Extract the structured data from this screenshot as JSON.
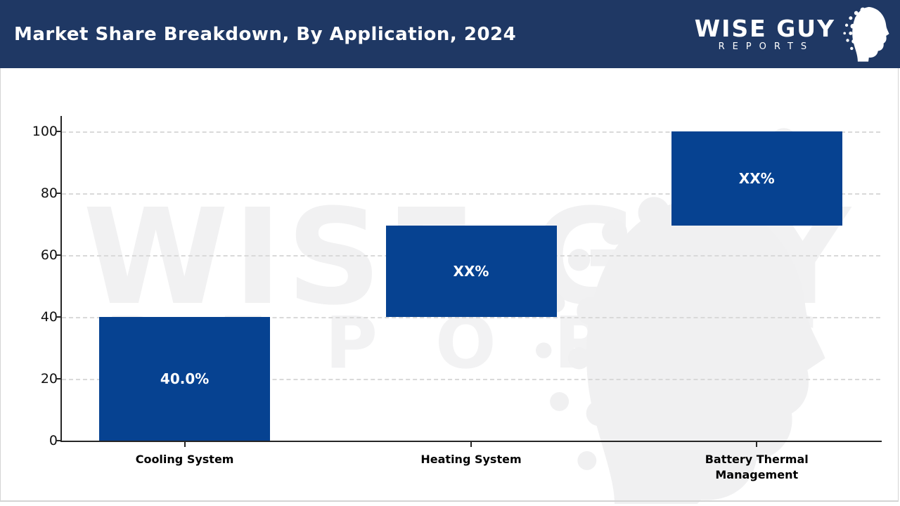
{
  "header": {
    "title": "Market Share Breakdown, By Application, 2024",
    "bg_color": "#1f3864",
    "logo": {
      "wordmark": "WISE GUY",
      "sub": "REPORTS"
    }
  },
  "watermark": {
    "line1": "WISE GUY",
    "line2": "REPORTS"
  },
  "chart_data": {
    "type": "bar",
    "subtype": "waterfall-stacked-breakdown",
    "title": "Market Share Breakdown, By Application, 2024",
    "categories": [
      "Cooling System",
      "Heating System",
      "Battery Thermal Management"
    ],
    "segments": [
      {
        "category": "Cooling System",
        "start": 0,
        "end": 40,
        "label": "40.0%"
      },
      {
        "category": "Heating System",
        "start": 40,
        "end": 69.5,
        "label": "XX%"
      },
      {
        "category": "Battery Thermal Management",
        "start": 69.5,
        "end": 100,
        "label": "XX%"
      }
    ],
    "yticks": [
      0,
      20,
      40,
      60,
      80,
      100
    ],
    "ylim": [
      0,
      100
    ],
    "grid": "horizontal-dashed",
    "legend": "none",
    "colors": {
      "bar": "#064291",
      "gridline": "#d9d9d9",
      "axis": "#262626",
      "value_label": "#ffffff"
    }
  }
}
